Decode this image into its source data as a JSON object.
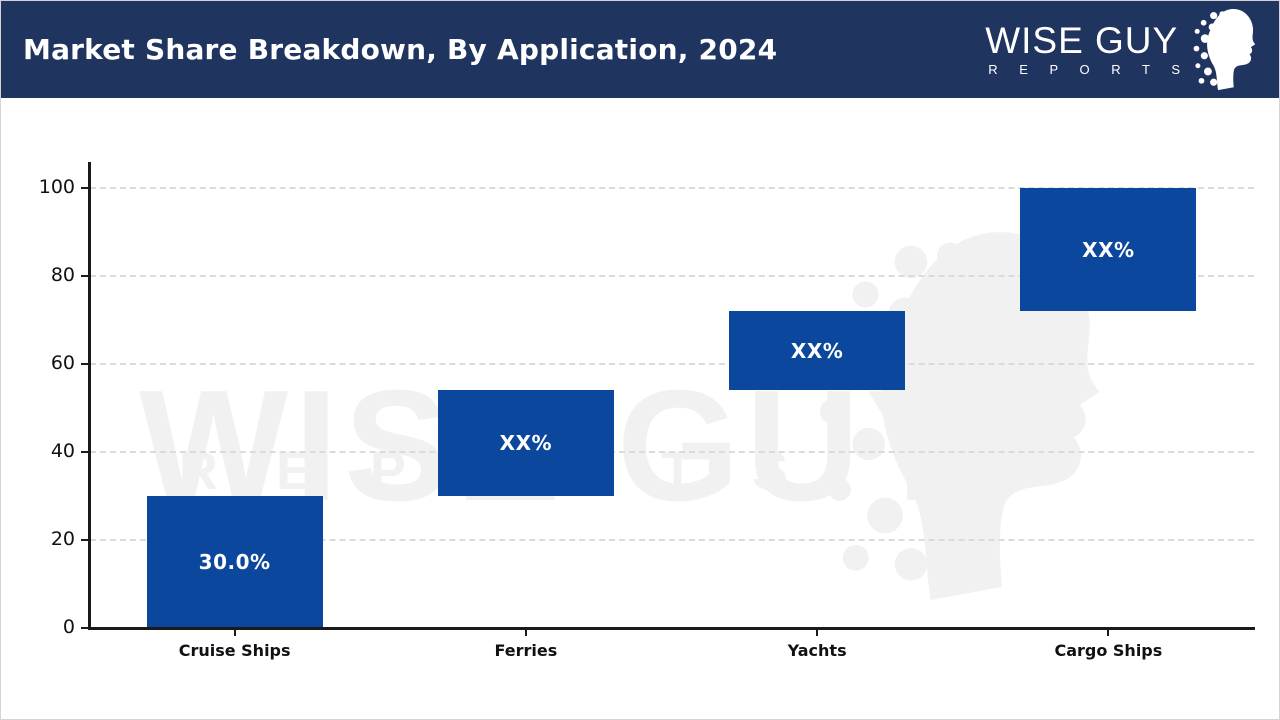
{
  "header": {
    "title": "Market Share Breakdown, By Application, 2024",
    "logo_line1": "WISE GUY",
    "logo_line2": "R E P O R T S"
  },
  "watermark": {
    "line1": "WISE GUY",
    "line2": "REPORTS"
  },
  "colors": {
    "header_bg": "#203460",
    "bar_blue": "#0b479d",
    "gridline": "#dbdbdb",
    "axis": "#1a1a1a",
    "watermark": "#f1f1f2"
  },
  "chart_data": {
    "type": "bar",
    "subtype": "waterfall",
    "title": "Market Share Breakdown, By Application, 2024",
    "categories": [
      "Cruise Ships",
      "Ferries",
      "Yachts",
      "Cargo Ships"
    ],
    "series": [
      {
        "name": "Market Share",
        "bar_starts": [
          0,
          30,
          54,
          72
        ],
        "bar_ends": [
          30,
          54,
          72,
          100
        ],
        "values_estimated": [
          30,
          24,
          18,
          28
        ]
      }
    ],
    "bar_labels": [
      "30.0%",
      "XX%",
      "XX%",
      "XX%"
    ],
    "xlabel": "",
    "ylabel": "",
    "y_ticks": [
      0,
      20,
      40,
      60,
      80,
      100
    ],
    "ylim": [
      0,
      106
    ],
    "grid": "dashed-horizontal",
    "legend": "none"
  }
}
